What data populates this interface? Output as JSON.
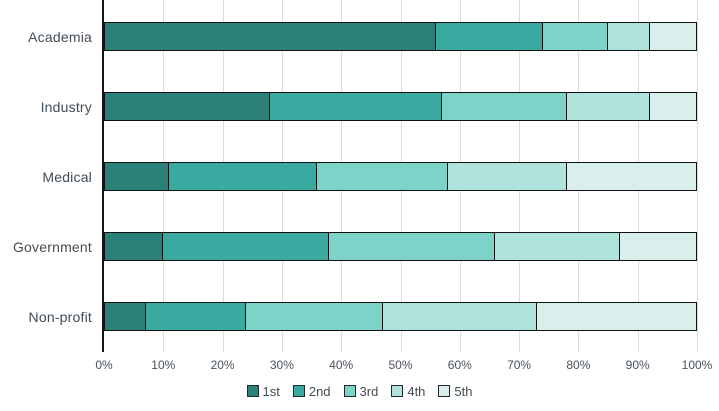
{
  "chart_data": {
    "type": "bar",
    "orientation": "horizontal",
    "stacked": true,
    "title": "",
    "xlabel": "",
    "ylabel": "",
    "unit": "%",
    "xlim": [
      0,
      100
    ],
    "grid": "vertical",
    "legend_position": "bottom",
    "categories": [
      "Academia",
      "Industry",
      "Medical",
      "Government",
      "Non-profit"
    ],
    "x_tick_labels": [
      "0%",
      "10%",
      "20%",
      "30%",
      "40%",
      "50%",
      "60%",
      "70%",
      "80%",
      "90%",
      "100%"
    ],
    "series": [
      {
        "name": "1st",
        "color": "#2b8178",
        "values": [
          56,
          28,
          11,
          10,
          7
        ]
      },
      {
        "name": "2nd",
        "color": "#3aaaa0",
        "values": [
          18,
          29,
          25,
          28,
          17
        ]
      },
      {
        "name": "3rd",
        "color": "#7dd3c7",
        "values": [
          11,
          21,
          22,
          28,
          23
        ]
      },
      {
        "name": "4th",
        "color": "#b0e3db",
        "values": [
          7,
          14,
          20,
          21,
          26
        ]
      },
      {
        "name": "5th",
        "color": "#d9efeb",
        "values": [
          8,
          8,
          22,
          13,
          27
        ]
      }
    ]
  },
  "colors": {
    "axis_line": "#161616",
    "gridline": "#dcdcdc",
    "segment_border": "#101010",
    "label_text": "#424c55"
  }
}
